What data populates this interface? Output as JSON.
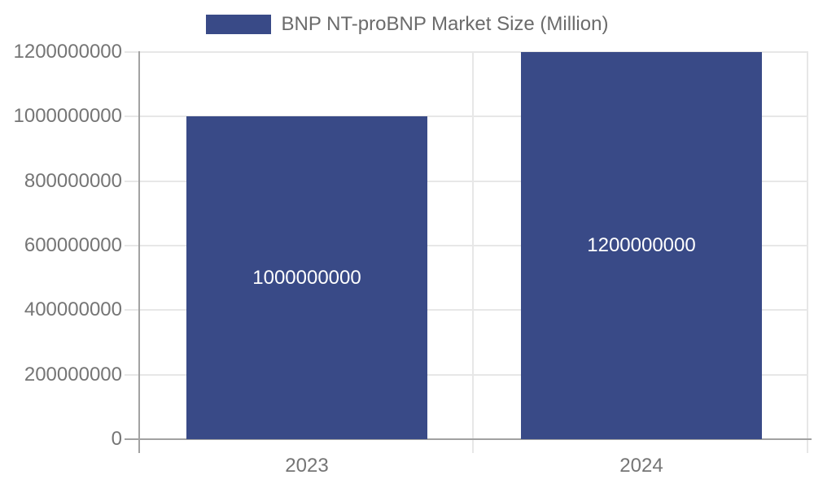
{
  "chart_data": {
    "type": "bar",
    "title": "BNP NT-proBNP Market Size (Million)",
    "categories": [
      "2023",
      "2024"
    ],
    "series": [
      {
        "name": "BNP NT-proBNP Market Size (Million)",
        "values": [
          1000000000,
          1200000000
        ]
      }
    ],
    "bar_value_labels": [
      "1000000000",
      "1200000000"
    ],
    "xlabel": "",
    "ylabel": "",
    "ylim": [
      0,
      1200000000
    ],
    "y_ticks": [
      0,
      200000000,
      400000000,
      600000000,
      800000000,
      1000000000,
      1200000000
    ],
    "grid": true,
    "legend_position": "top-center",
    "colors": {
      "bar_fill": "#394A87",
      "bar_value_text": "#ffffff",
      "gridline": "#e7e7e7",
      "axis_line": "#a2a2a2",
      "tick_label_text": "#757575",
      "legend_text": "#6b6b6b",
      "background": "#ffffff"
    }
  }
}
